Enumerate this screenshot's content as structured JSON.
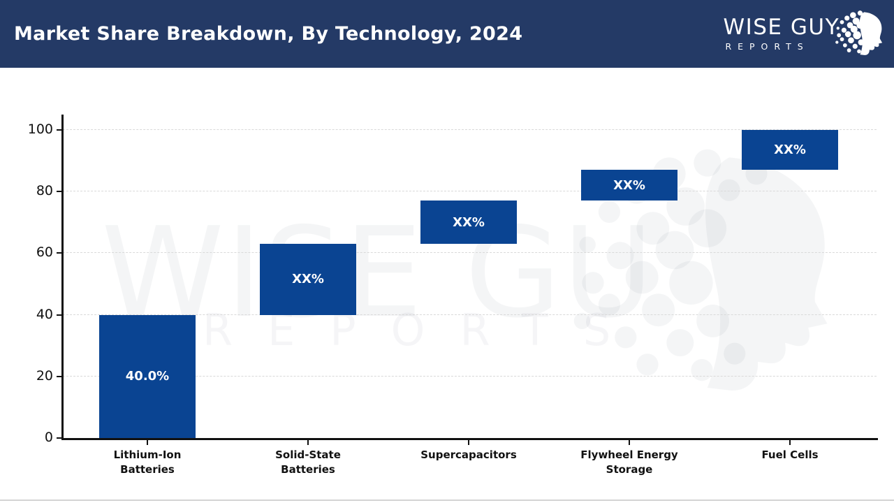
{
  "header": {
    "title": "Market Share Breakdown, By Technology, 2024",
    "logo": {
      "name": "WISE GUY",
      "tagline": "REPORTS"
    }
  },
  "watermark": {
    "name": "WISE GU",
    "tagline": "REPORTS"
  },
  "chart_data": {
    "type": "bar",
    "variant": "waterfall",
    "title": "Market Share Breakdown, By Technology, 2024",
    "categories": [
      "Lithium-Ion\nBatteries",
      "Solid-State\nBatteries",
      "Supercapacitors",
      "Flywheel Energy\nStorage",
      "Fuel Cells"
    ],
    "series": [
      {
        "name": "Market Share (%)",
        "segments": [
          [
            0,
            40
          ],
          [
            40,
            63
          ],
          [
            63,
            77
          ],
          [
            77,
            87
          ],
          [
            87,
            100
          ]
        ],
        "bar_labels": [
          "40.0%",
          "XX%",
          "XX%",
          "XX%",
          "XX%"
        ]
      }
    ],
    "xlabel": "",
    "ylabel": "",
    "ylim": [
      0,
      100
    ],
    "yticks": [
      0,
      20,
      40,
      60,
      80,
      100
    ],
    "grid": {
      "axis": "y",
      "style": "dashed",
      "color": "#d9d9d9"
    },
    "legend": null,
    "colors": {
      "bar": "#0a4492",
      "bar_label": "#ffffff",
      "header_bg": "#243a66",
      "axis": "#111111"
    }
  }
}
